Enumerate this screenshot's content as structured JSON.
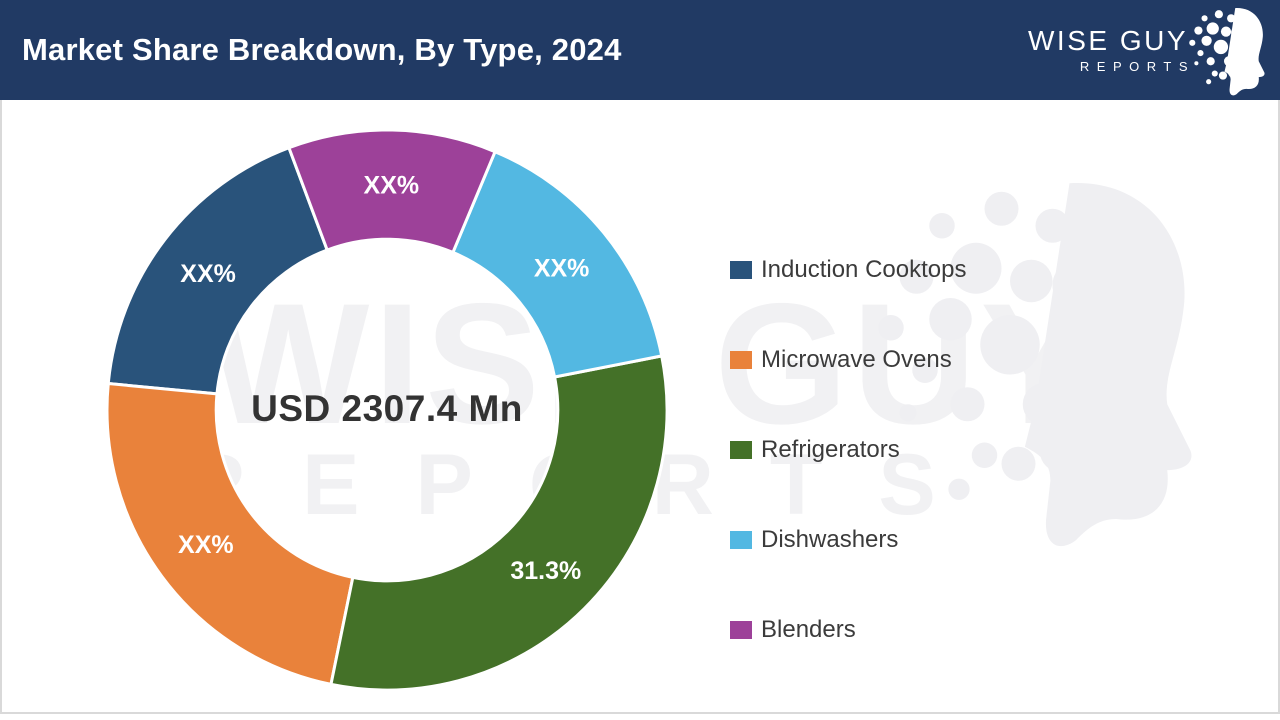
{
  "header": {
    "title": "Market Share Breakdown, By Type, 2024",
    "bg_color": "#213a64",
    "logo": {
      "wordmark": "WISE GUY",
      "subtitle": "REPORTS"
    }
  },
  "watermark": {
    "line1": "WISE GUY",
    "line2": "REPORTS"
  },
  "chart_data": {
    "type": "pie",
    "subtype": "donut",
    "title": "Market Share Breakdown, By Type, 2024",
    "center_label": "USD 2307.4 Mn",
    "legend_position": "right",
    "direction": "counterclockwise",
    "start_angle_deg_from_top": -20.5,
    "inner_radius_ratio": 0.61,
    "series": [
      {
        "name": "Induction Cooktops",
        "value_pct": 17.8,
        "slice_label": "XX%",
        "color": "#29537b"
      },
      {
        "name": "Microwave Ovens",
        "value_pct": 23.3,
        "slice_label": "XX%",
        "color": "#e9823b"
      },
      {
        "name": "Refrigerators",
        "value_pct": 31.3,
        "slice_label": "31.3%",
        "color": "#447128"
      },
      {
        "name": "Dishwashers",
        "value_pct": 15.6,
        "slice_label": "XX%",
        "color": "#53b8e2"
      },
      {
        "name": "Blenders",
        "value_pct": 12.0,
        "slice_label": "XX%",
        "color": "#9d4199"
      }
    ]
  }
}
